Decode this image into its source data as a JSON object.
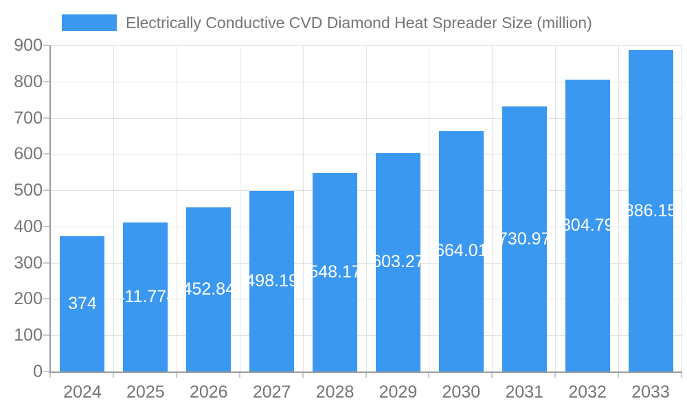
{
  "legend": {
    "position": "top",
    "items": [
      {
        "label": "Electrically Conductive CVD Diamond Heat Spreader Size (million)",
        "color": "#3B98F0"
      }
    ]
  },
  "chart_data": {
    "type": "bar",
    "title": "Electrically Conductive CVD Diamond Heat Spreader Size (million)",
    "categories": [
      "2024",
      "2025",
      "2026",
      "2027",
      "2028",
      "2029",
      "2030",
      "2031",
      "2032",
      "2033"
    ],
    "series": [
      {
        "name": "Electrically Conductive CVD Diamond Heat Spreader Size (million)",
        "color": "#3B98F0",
        "values": [
          374,
          411.774,
          452.84,
          498.19,
          548.17,
          603.27,
          664.01,
          730.97,
          804.79,
          886.15
        ],
        "value_labels": [
          "374",
          "411.774",
          "452.84",
          "498.19",
          "548.17",
          "603.27",
          "664.01",
          "730.97",
          "804.79",
          "886.15"
        ]
      }
    ],
    "xlabel": "",
    "ylabel": "",
    "ylim": [
      0,
      900
    ],
    "yticks": [
      0,
      100,
      200,
      300,
      400,
      500,
      600,
      700,
      800,
      900
    ],
    "grid": true,
    "legend_position": "top",
    "colors": {
      "bar": "#3B98F0",
      "axis_line": "#9B9B9B",
      "gridline": "#E2E2E2",
      "tick": "#C9C9C9",
      "axis_text": "#757575",
      "value_label": "#FFFFFF",
      "background": "#FFFFFF"
    }
  }
}
